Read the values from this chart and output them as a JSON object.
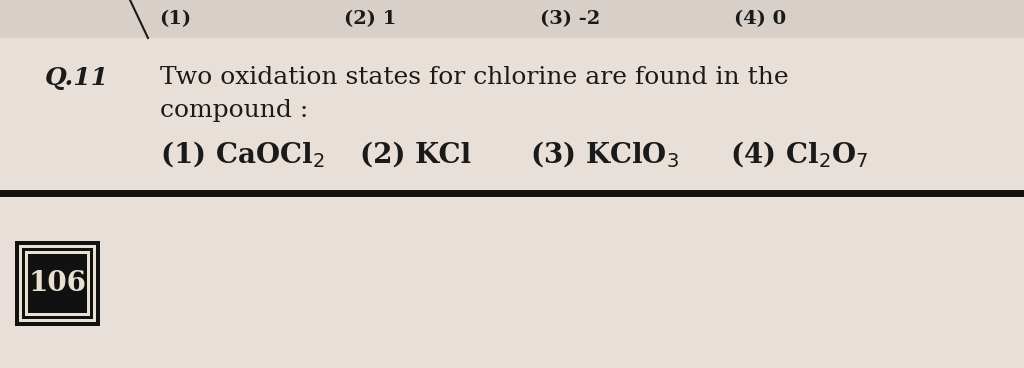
{
  "background_color": "#e8e0d8",
  "question_number": "Q.11",
  "question_text_line1": "Two oxidation states for chlorine are found in the",
  "question_text_line2": "compound :",
  "opt1": "(1) CaOCl",
  "opt1_sub": "2",
  "opt2": "(2) KCl",
  "opt3": "(3) KClO",
  "opt3_sub": "3",
  "opt4": "(4) Cl",
  "opt4_sub1": "2",
  "opt4_mid": "O",
  "opt4_sub2": "7",
  "page_number": "106",
  "separator_line_color": "#111111",
  "text_color": "#1a1a1a",
  "box_bg_color": "#111111",
  "box_text_color": "#e8e0d0",
  "top_remnant_color": "#d8d0c8",
  "font_size_question": 18,
  "font_size_options": 20,
  "font_size_qnum": 18,
  "font_size_page": 20,
  "font_size_top": 14
}
